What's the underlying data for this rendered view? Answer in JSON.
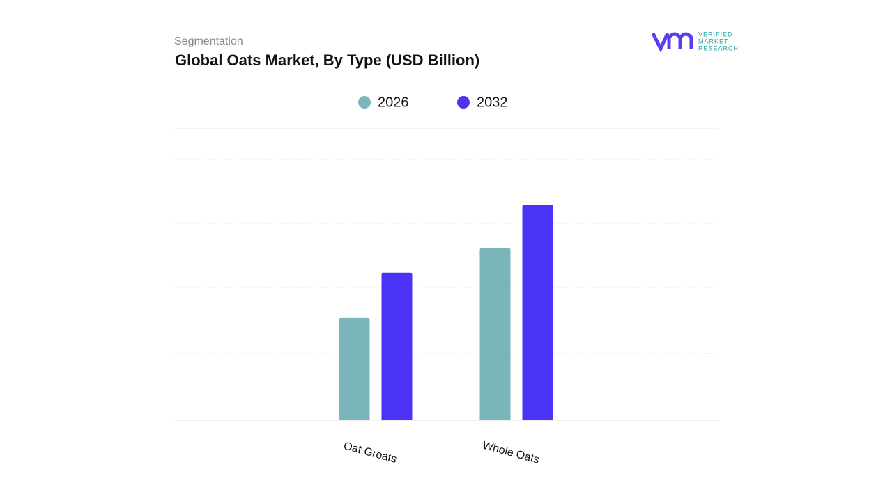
{
  "chart_data": {
    "type": "bar",
    "subtitle": "Segmentation",
    "title": "Global Oats Market, By Type (USD Billion)",
    "logo": [
      "VERIFIED",
      "MARKET",
      "RESEARCH"
    ],
    "categories": [
      "Oat Groats",
      "Whole Oats"
    ],
    "series": [
      {
        "name": "2026",
        "color": "#7ab6b9",
        "values": [
          1.58,
          2.66
        ]
      },
      {
        "name": "2032",
        "color": "#4b33f5",
        "values": [
          2.28,
          3.33
        ]
      }
    ],
    "ylim": [
      0,
      4.5
    ],
    "legend": "top"
  }
}
